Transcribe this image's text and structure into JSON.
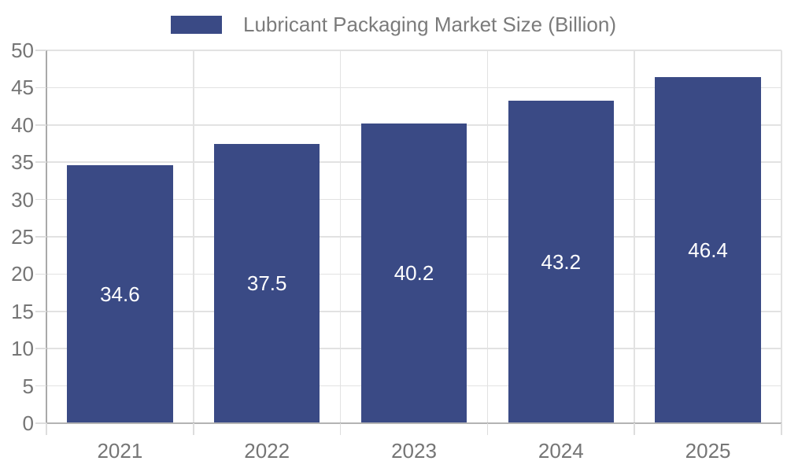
{
  "chart_data": {
    "type": "bar",
    "legend": "Lubricant Packaging Market Size (Billion)",
    "categories": [
      "2021",
      "2022",
      "2023",
      "2024",
      "2025"
    ],
    "values": [
      34.6,
      37.5,
      40.2,
      43.2,
      46.4
    ],
    "value_labels": [
      "34.6",
      "37.5",
      "40.2",
      "43.2",
      "46.4"
    ],
    "title": "",
    "xlabel": "",
    "ylabel": "",
    "ylim": [
      0,
      50
    ],
    "ytick_step": 5,
    "grid": true,
    "legend_position": "top",
    "bar_width_fraction": 0.72,
    "colors": {
      "bar": "#3A4A85",
      "bar_value_label": "#ffffff",
      "legend_text": "#7b7b7b",
      "tick_label": "#757575",
      "gridline": "#e2e2e2",
      "axis": "#a9a9a9",
      "background": "#ffffff"
    }
  }
}
